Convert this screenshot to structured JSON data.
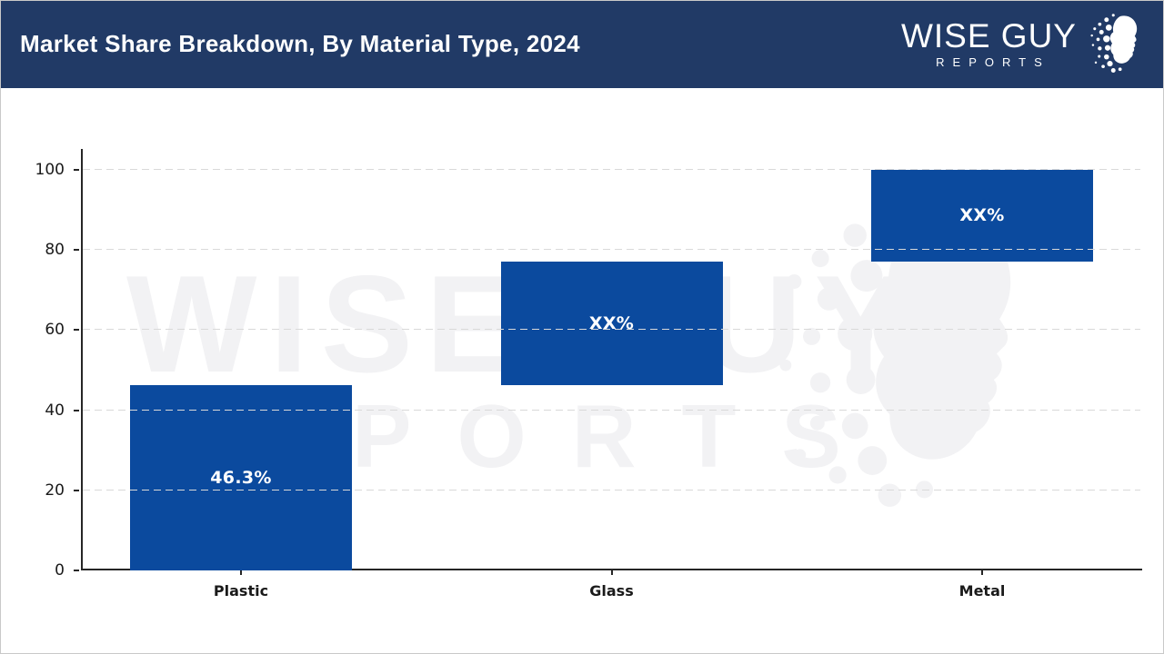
{
  "colors": {
    "header_bg": "#213A66",
    "bar": "#0B4A9E",
    "grid": "#D9D9D9",
    "axis": "#262626",
    "bar_label_text": "#FFFFFF",
    "watermark": "#F2F2F4",
    "page_border": "#C9C9C9"
  },
  "header": {
    "title": "Market Share Breakdown, By Material Type, 2024",
    "logo": {
      "wordmark": "WISE GUY",
      "sub": "REPORTS"
    }
  },
  "watermark": {
    "line1": "WISE GUY",
    "line2": "REPORTS"
  },
  "chart_data": {
    "type": "bar",
    "subtype": "waterfall-floating-bars",
    "title": "Market Share Breakdown, By Material Type, 2024",
    "categories": [
      "Plastic",
      "Glass",
      "Metal"
    ],
    "segments": [
      {
        "category": "Plastic",
        "start": 0,
        "end": 46.3,
        "label": "46.3%"
      },
      {
        "category": "Glass",
        "start": 46.3,
        "end": 77.2,
        "label": "XX%"
      },
      {
        "category": "Metal",
        "start": 77.2,
        "end": 100,
        "label": "XX%"
      }
    ],
    "xlabel": "",
    "ylabel": "",
    "ylim": [
      0,
      105
    ],
    "yticks": [
      0,
      20,
      40,
      60,
      80,
      100
    ],
    "grid": "horizontal-dashed-over-bars",
    "legend": "none",
    "bar_color": "#0B4A9E",
    "value_label_color": "#FFFFFF"
  }
}
